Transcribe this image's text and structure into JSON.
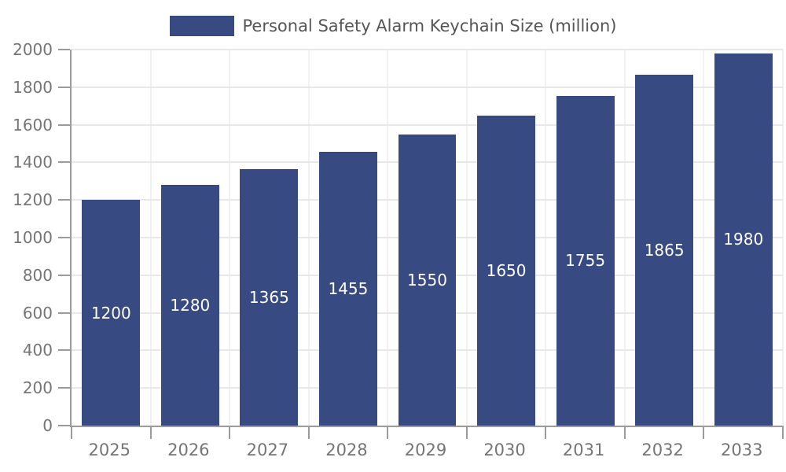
{
  "legend": {
    "label": "Personal Safety Alarm Keychain Size (million)"
  },
  "colors": {
    "bar": "#374A81",
    "horizontal_grid": "#e8e8e8",
    "vertical_grid": "#e3e3e3",
    "axis": "#9b9b9b",
    "tick_label": "#757575",
    "legend_text": "#555555",
    "value_label": "#ffffff"
  },
  "chart_data": {
    "type": "bar",
    "title": "Personal Safety Alarm Keychain Size (million)",
    "legend_entries": [
      "Personal Safety Alarm Keychain Size (million)"
    ],
    "legend_position": "top-center",
    "categories": [
      "2025",
      "2026",
      "2027",
      "2028",
      "2029",
      "2030",
      "2031",
      "2032",
      "2033"
    ],
    "values": [
      1200,
      1280,
      1365,
      1455,
      1550,
      1650,
      1755,
      1865,
      1980
    ],
    "xlabel": "",
    "ylabel": "",
    "ylim": [
      0,
      2000
    ],
    "ytick_step": 200,
    "yticks": [
      0,
      200,
      400,
      600,
      800,
      1000,
      1200,
      1400,
      1600,
      1800,
      2000
    ],
    "grid": true,
    "value_labels_shown": true,
    "value_label_position": "center-of-bar"
  }
}
